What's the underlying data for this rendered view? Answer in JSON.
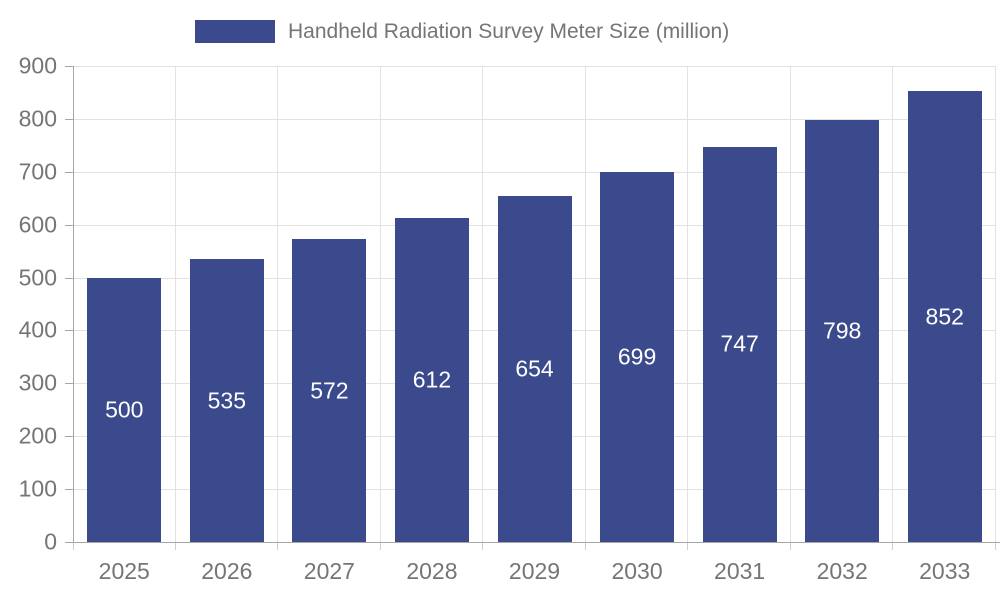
{
  "legend": {
    "label": "Handheld Radiation Survey Meter Size (million)"
  },
  "colors": {
    "bar": "#3a4a8c",
    "axis": "#a6a6a6",
    "grid": "#e2e2e2",
    "x_tick": "#cfcfcf",
    "tick_label": "#757575",
    "value_label": "#ffffff",
    "background": "#ffffff"
  },
  "chart_data": {
    "type": "bar",
    "title": "Handheld Radiation Survey Meter Size (million)",
    "categories": [
      "2025",
      "2026",
      "2027",
      "2028",
      "2029",
      "2030",
      "2031",
      "2032",
      "2033"
    ],
    "values": [
      500,
      535,
      572,
      612,
      654,
      699,
      747,
      798,
      852
    ],
    "xlabel": "",
    "ylabel": "",
    "ylim": [
      0,
      900
    ],
    "ytick_step": 100,
    "grid": true,
    "legend_position": "top",
    "value_labels": "inside-center"
  }
}
